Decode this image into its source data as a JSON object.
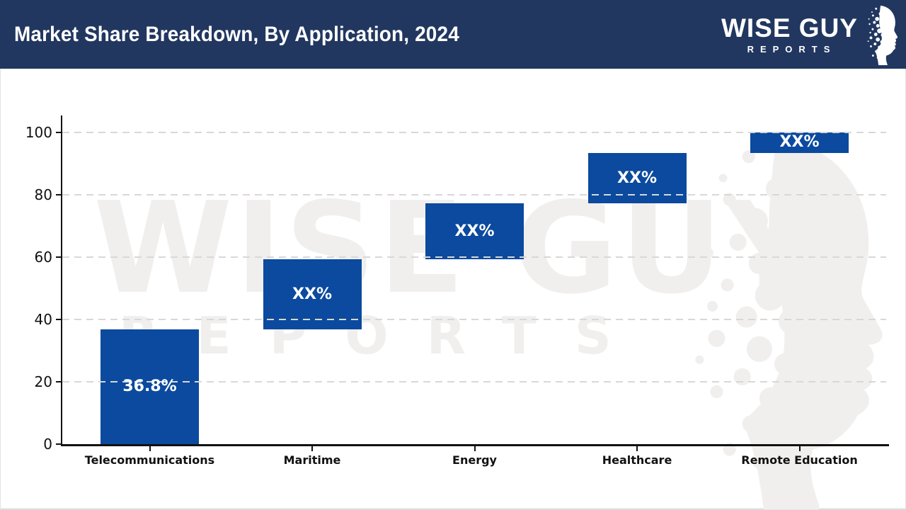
{
  "brand": {
    "name": "WISE GUY",
    "tagline": "REPORTS"
  },
  "chart_data": {
    "type": "bar",
    "variant": "waterfall",
    "title": "Market Share Breakdown, By Application, 2024",
    "categories": [
      "Telecommunications",
      "Maritime",
      "Energy",
      "Healthcare",
      "Remote Education"
    ],
    "bars": [
      {
        "category": "Telecommunications",
        "start": 0,
        "end": 36.8,
        "label": "36.8%"
      },
      {
        "category": "Maritime",
        "start": 36.8,
        "end": 59.2,
        "label": "XX%"
      },
      {
        "category": "Energy",
        "start": 59.2,
        "end": 77.1,
        "label": "XX%"
      },
      {
        "category": "Healthcare",
        "start": 77.1,
        "end": 93.3,
        "label": "XX%"
      },
      {
        "category": "Remote Education",
        "start": 93.3,
        "end": 100,
        "label": "XX%"
      }
    ],
    "yticks": [
      0,
      20,
      40,
      60,
      80,
      100
    ],
    "ylim": [
      0,
      105
    ],
    "xlabel": "",
    "ylabel": "",
    "bar_color": "#0b4a9e",
    "grid": {
      "axis": "y",
      "style": "dashed",
      "color": "#d8d8d8"
    },
    "legend": null
  }
}
